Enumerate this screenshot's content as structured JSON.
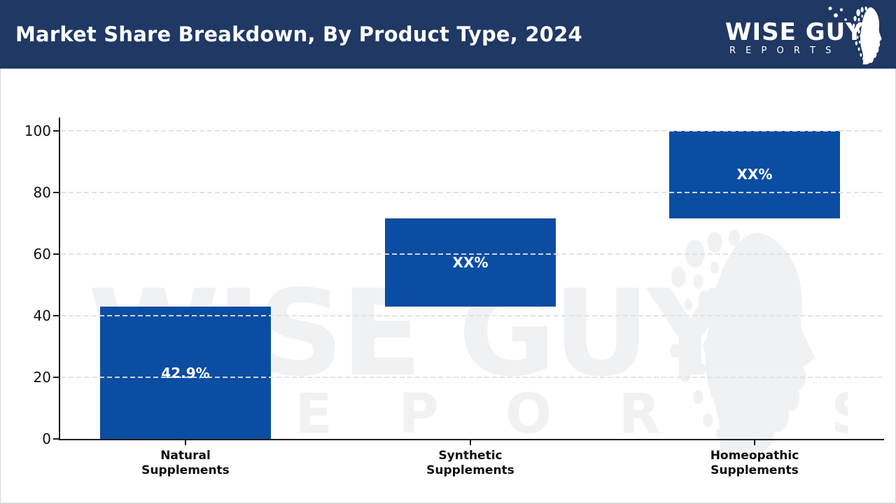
{
  "header": {
    "title": "Market Share Breakdown, By Product Type, 2024",
    "bg_color": "#1f3864"
  },
  "logo": {
    "name": "WISE GUY",
    "sub": "R E P O R T S"
  },
  "watermark": {
    "name": "WISE GUY",
    "sub": "R E P O R T S"
  },
  "chart_data": {
    "type": "bar",
    "subtype": "floating-waterfall",
    "title": "Market Share Breakdown, By Product Type, 2024",
    "categories": [
      "Natural\nSupplements",
      "Synthetic\nSupplements",
      "Homeopathic\nSupplements"
    ],
    "segments": [
      {
        "category": "Natural Supplements",
        "start": 0,
        "end": 42.9,
        "label": "42.9%"
      },
      {
        "category": "Synthetic Supplements",
        "start": 42.9,
        "end": 71.4,
        "label": "XX%"
      },
      {
        "category": "Homeopathic Supplements",
        "start": 71.4,
        "end": 100,
        "label": "XX%"
      }
    ],
    "yticks": [
      0,
      20,
      40,
      60,
      80,
      100
    ],
    "ylim": [
      0,
      104
    ],
    "xlabel": "",
    "ylabel": "",
    "grid": "horizontal-dashed",
    "legend": false,
    "bar_color": "#0b4da2",
    "bar_label_color": "#ffffff",
    "axis_color": "#1c1c1c",
    "grid_color": "#e0e0e0"
  }
}
